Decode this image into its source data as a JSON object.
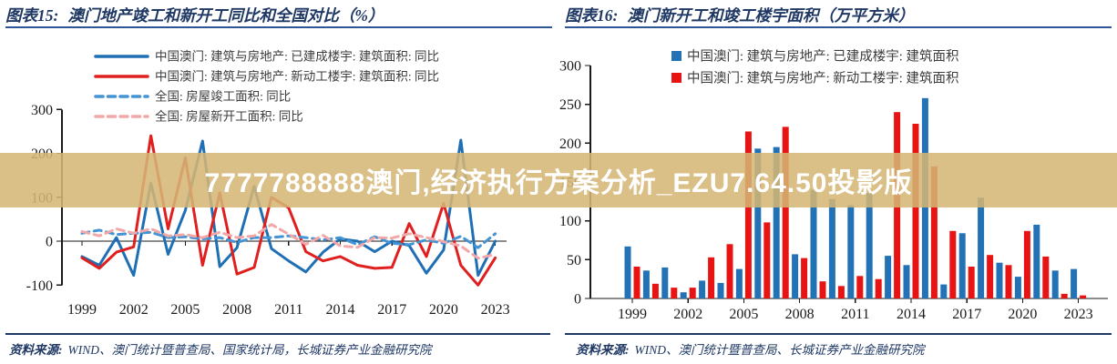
{
  "page": {
    "background": "#ffffff"
  },
  "left_panel": {
    "title_label": "图表15:",
    "title_text": "澳门地产竣工和新开工同比和全国对比（%）",
    "source_label": "资料来源:",
    "source_text": "WIND、澳门统计暨普查局、国家统计局，长城证券产业金融研究院"
  },
  "right_panel": {
    "title_label": "图表16:",
    "title_text": "澳门新开工和竣工楼宇面积（万平方米）",
    "source_label": "资料来源:",
    "source_text": "WIND、澳门统计暨普查局、长城证券产业金融研究院"
  },
  "watermark": {
    "text": "7777788888澳门,经济执行方案分析_EZU7.64.50投影版",
    "band_color": "#D4B574",
    "text_color": "#ffffff"
  },
  "colors": {
    "title_navy": "#1F3864",
    "title_underline": "#2F5597",
    "axis": "#1a1a1a",
    "macau_blue": "#1F6FB5",
    "macau_red": "#E01F1F",
    "national_blue_dashed": "#4493D3",
    "national_pink_dashed": "#F2A8A8",
    "bar_blue": "#2272B5",
    "bar_red": "#E81414"
  },
  "chart_data": [
    {
      "type": "line",
      "title": "澳门地产竣工和新开工同比和全国对比（%）",
      "x": [
        1999,
        2000,
        2001,
        2002,
        2003,
        2004,
        2005,
        2006,
        2007,
        2008,
        2009,
        2010,
        2011,
        2012,
        2013,
        2014,
        2015,
        2016,
        2017,
        2018,
        2019,
        2020,
        2021,
        2022,
        2023
      ],
      "x_tick_labels": [
        "1999",
        "2002",
        "2005",
        "2008",
        "2011",
        "2014",
        "2017",
        "2020",
        "2023"
      ],
      "ylim": [
        -100,
        300
      ],
      "yticks": [
        300,
        200,
        100,
        0,
        -100
      ],
      "grid": false,
      "legend_position": "top-left",
      "series": [
        {
          "name": "中国澳门: 建筑与房地产: 已建成楼宇: 建筑面积: 同比",
          "color": "#1F6FB5",
          "dash": false,
          "values": [
            -35,
            -55,
            8,
            -78,
            132,
            -30,
            70,
            228,
            -58,
            -15,
            125,
            -17,
            -45,
            -70,
            -25,
            5,
            0,
            -24,
            0,
            -10,
            -73,
            -20,
            230,
            -78,
            0
          ]
        },
        {
          "name": "中国澳门: 建筑与房地产: 新动工楼宇: 建筑面积: 同比",
          "color": "#E01F1F",
          "dash": false,
          "values": [
            -38,
            -62,
            -25,
            -13,
            240,
            28,
            190,
            -55,
            110,
            -75,
            -60,
            100,
            76,
            -24,
            -45,
            -35,
            -55,
            -62,
            -60,
            40,
            -35,
            86,
            -55,
            -100,
            -38
          ]
        },
        {
          "name": "全国: 房屋竣工面积: 同比",
          "color": "#4493D3",
          "dash": true,
          "values": [
            18,
            25,
            15,
            18,
            20,
            8,
            10,
            5,
            8,
            -3,
            8,
            8,
            12,
            8,
            3,
            8,
            -8,
            10,
            -5,
            -8,
            3,
            -5,
            11,
            -15,
            17
          ]
        },
        {
          "name": "全国: 房屋新开工面积: 同比",
          "color": "#F2A8A8",
          "dash": true,
          "values": [
            22,
            12,
            28,
            18,
            28,
            12,
            15,
            8,
            20,
            8,
            12,
            38,
            16,
            -7,
            13,
            -11,
            -14,
            8,
            7,
            17,
            8,
            -1,
            -11,
            -39,
            -30
          ]
        }
      ]
    },
    {
      "type": "bar",
      "title": "澳门新开工和竣工楼宇面积（万平方米）",
      "categories": [
        1999,
        2000,
        2001,
        2002,
        2003,
        2004,
        2005,
        2006,
        2007,
        2008,
        2009,
        2010,
        2011,
        2012,
        2013,
        2014,
        2015,
        2016,
        2017,
        2018,
        2019,
        2020,
        2021,
        2022,
        2023
      ],
      "x_tick_labels": [
        "1999",
        "2002",
        "2005",
        "2008",
        "2011",
        "2014",
        "2017",
        "2020",
        "2023"
      ],
      "ylim": [
        0,
        300
      ],
      "yticks": [
        0,
        50,
        100,
        150,
        200,
        250,
        300
      ],
      "grid": false,
      "legend_position": "top",
      "series": [
        {
          "name": "中国澳门: 建筑与房地产: 已建成楼宇: 建筑面积",
          "color": "#2272B5",
          "values": [
            67,
            36,
            40,
            8,
            23,
            20,
            38,
            193,
            195,
            57,
            140,
            128,
            120,
            136,
            55,
            43,
            258,
            18,
            84,
            130,
            46,
            28,
            95,
            36,
            38
          ]
        },
        {
          "name": "中国澳门: 建筑与房地产: 新动工楼宇: 建筑面积",
          "color": "#E81414",
          "values": [
            41,
            19,
            14,
            14,
            53,
            70,
            215,
            98,
            221,
            52,
            22,
            16,
            29,
            25,
            240,
            225,
            170,
            87,
            41,
            56,
            43,
            87,
            54,
            6,
            4
          ]
        }
      ]
    }
  ]
}
